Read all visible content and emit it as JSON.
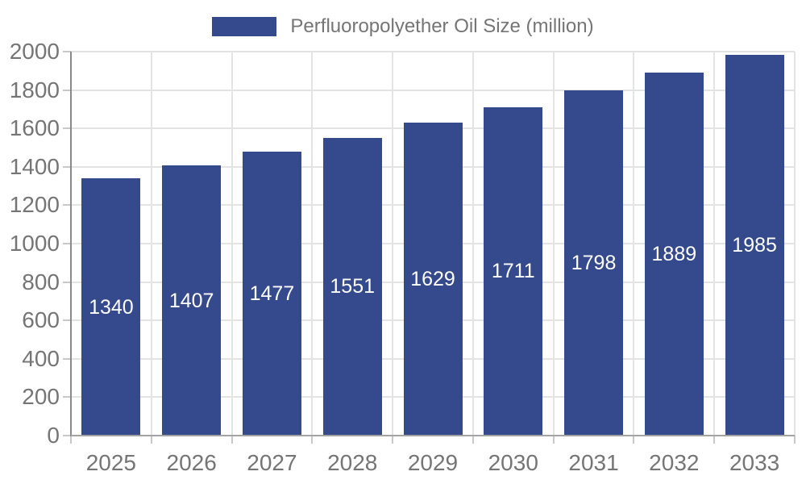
{
  "chart_data": {
    "type": "bar",
    "title": "",
    "legend": "Perfluoropolyether Oil Size (million)",
    "legend_position": "top-center",
    "categories": [
      "2025",
      "2026",
      "2027",
      "2028",
      "2029",
      "2030",
      "2031",
      "2032",
      "2033"
    ],
    "series": [
      {
        "name": "Perfluoropolyether Oil Size (million)",
        "values": [
          1340,
          1407,
          1477,
          1551,
          1629,
          1711,
          1798,
          1889,
          1985
        ]
      }
    ],
    "xlabel": "",
    "ylabel": "",
    "ylim": [
      0,
      2000
    ],
    "yticks": [
      0,
      200,
      400,
      600,
      800,
      1000,
      1200,
      1400,
      1600,
      1800,
      2000
    ],
    "grid": true,
    "value_labels_inside_bars": true,
    "colors": {
      "bar": "#344a8c",
      "value_label": "#ffffff",
      "axis_text": "#757575",
      "grid": "#e3e3e3",
      "y_axis_line": "#8a8a8a",
      "x_axis_line": "#a3a3a3",
      "tick": "#c8c8c8"
    }
  }
}
